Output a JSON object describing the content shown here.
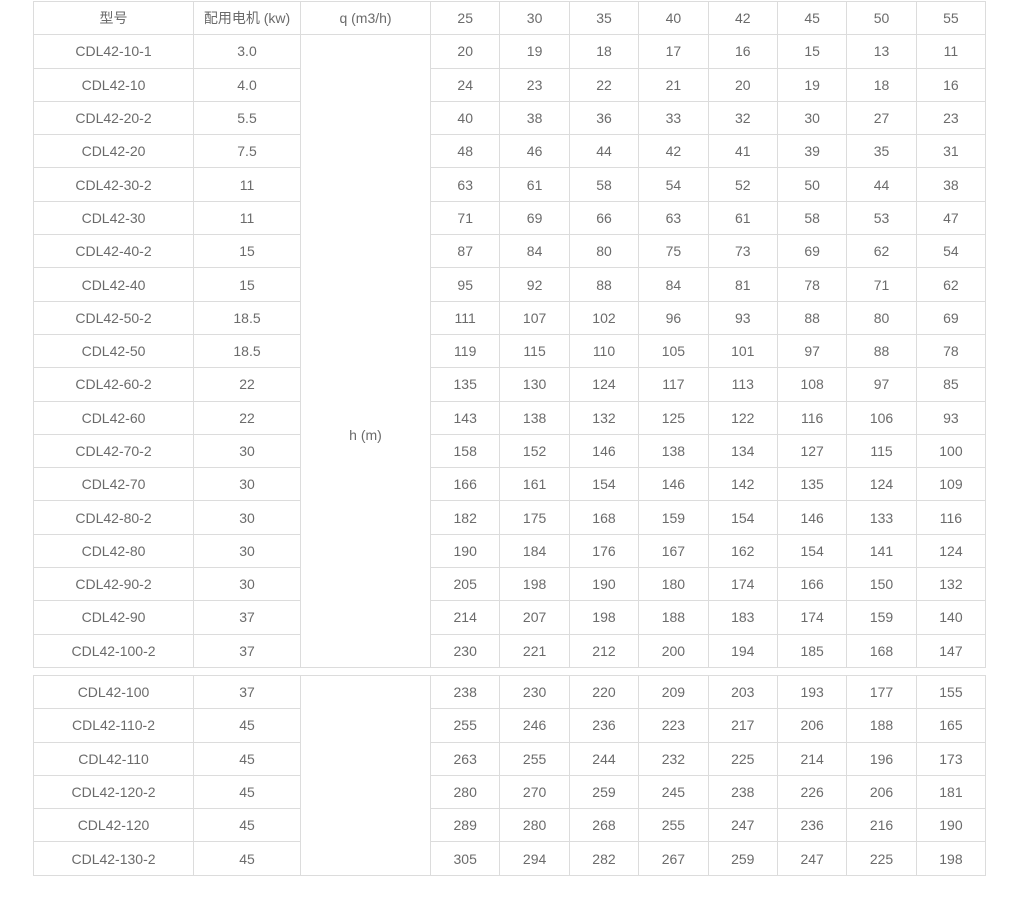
{
  "page": {
    "background_color": "#ffffff",
    "border_color": "#dcdcdc",
    "text_color": "#6b6b6b"
  },
  "table": {
    "columns": {
      "model_header": "型号",
      "motor_header": "配用电机 (kw)",
      "flow_header": "q (m3/h)",
      "head_label": "h (m)",
      "flow_values": [
        "25",
        "30",
        "35",
        "40",
        "42",
        "45",
        "50",
        "55"
      ]
    },
    "rows_upper": [
      {
        "model": "CDL42-10-1",
        "motor": "3.0",
        "values": [
          "20",
          "19",
          "18",
          "17",
          "16",
          "15",
          "13",
          "11"
        ]
      },
      {
        "model": "CDL42-10",
        "motor": "4.0",
        "values": [
          "24",
          "23",
          "22",
          "21",
          "20",
          "19",
          "18",
          "16"
        ]
      },
      {
        "model": "CDL42-20-2",
        "motor": "5.5",
        "values": [
          "40",
          "38",
          "36",
          "33",
          "32",
          "30",
          "27",
          "23"
        ]
      },
      {
        "model": "CDL42-20",
        "motor": "7.5",
        "values": [
          "48",
          "46",
          "44",
          "42",
          "41",
          "39",
          "35",
          "31"
        ]
      },
      {
        "model": "CDL42-30-2",
        "motor": "11",
        "values": [
          "63",
          "61",
          "58",
          "54",
          "52",
          "50",
          "44",
          "38"
        ]
      },
      {
        "model": "CDL42-30",
        "motor": "11",
        "values": [
          "71",
          "69",
          "66",
          "63",
          "61",
          "58",
          "53",
          "47"
        ]
      },
      {
        "model": "CDL42-40-2",
        "motor": "15",
        "values": [
          "87",
          "84",
          "80",
          "75",
          "73",
          "69",
          "62",
          "54"
        ]
      },
      {
        "model": "CDL42-40",
        "motor": "15",
        "values": [
          "95",
          "92",
          "88",
          "84",
          "81",
          "78",
          "71",
          "62"
        ]
      },
      {
        "model": "CDL42-50-2",
        "motor": "18.5",
        "values": [
          "111",
          "107",
          "102",
          "96",
          "93",
          "88",
          "80",
          "69"
        ]
      },
      {
        "model": "CDL42-50",
        "motor": "18.5",
        "values": [
          "119",
          "115",
          "110",
          "105",
          "101",
          "97",
          "88",
          "78"
        ]
      },
      {
        "model": "CDL42-60-2",
        "motor": "22",
        "values": [
          "135",
          "130",
          "124",
          "117",
          "113",
          "108",
          "97",
          "85"
        ]
      },
      {
        "model": "CDL42-60",
        "motor": "22",
        "values": [
          "143",
          "138",
          "132",
          "125",
          "122",
          "116",
          "106",
          "93"
        ]
      },
      {
        "model": "CDL42-70-2",
        "motor": "30",
        "values": [
          "158",
          "152",
          "146",
          "138",
          "134",
          "127",
          "115",
          "100"
        ]
      },
      {
        "model": "CDL42-70",
        "motor": "30",
        "values": [
          "166",
          "161",
          "154",
          "146",
          "142",
          "135",
          "124",
          "109"
        ]
      },
      {
        "model": "CDL42-80-2",
        "motor": "30",
        "values": [
          "182",
          "175",
          "168",
          "159",
          "154",
          "146",
          "133",
          "116"
        ]
      },
      {
        "model": "CDL42-80",
        "motor": "30",
        "values": [
          "190",
          "184",
          "176",
          "167",
          "162",
          "154",
          "141",
          "124"
        ]
      },
      {
        "model": "CDL42-90-2",
        "motor": "30",
        "values": [
          "205",
          "198",
          "190",
          "180",
          "174",
          "166",
          "150",
          "132"
        ]
      },
      {
        "model": "CDL42-90",
        "motor": "37",
        "values": [
          "214",
          "207",
          "198",
          "188",
          "183",
          "174",
          "159",
          "140"
        ]
      },
      {
        "model": "CDL42-100-2",
        "motor": "37",
        "values": [
          "230",
          "221",
          "212",
          "200",
          "194",
          "185",
          "168",
          "147"
        ]
      }
    ],
    "rows_lower": [
      {
        "model": "CDL42-100",
        "motor": "37",
        "values": [
          "238",
          "230",
          "220",
          "209",
          "203",
          "193",
          "177",
          "155"
        ]
      },
      {
        "model": "CDL42-110-2",
        "motor": "45",
        "values": [
          "255",
          "246",
          "236",
          "223",
          "217",
          "206",
          "188",
          "165"
        ]
      },
      {
        "model": "CDL42-110",
        "motor": "45",
        "values": [
          "263",
          "255",
          "244",
          "232",
          "225",
          "214",
          "196",
          "173"
        ]
      },
      {
        "model": "CDL42-120-2",
        "motor": "45",
        "values": [
          "280",
          "270",
          "259",
          "245",
          "238",
          "226",
          "206",
          "181"
        ]
      },
      {
        "model": "CDL42-120",
        "motor": "45",
        "values": [
          "289",
          "280",
          "268",
          "255",
          "247",
          "236",
          "216",
          "190"
        ]
      },
      {
        "model": "CDL42-130-2",
        "motor": "45",
        "values": [
          "305",
          "294",
          "282",
          "267",
          "259",
          "247",
          "225",
          "198"
        ]
      }
    ]
  }
}
